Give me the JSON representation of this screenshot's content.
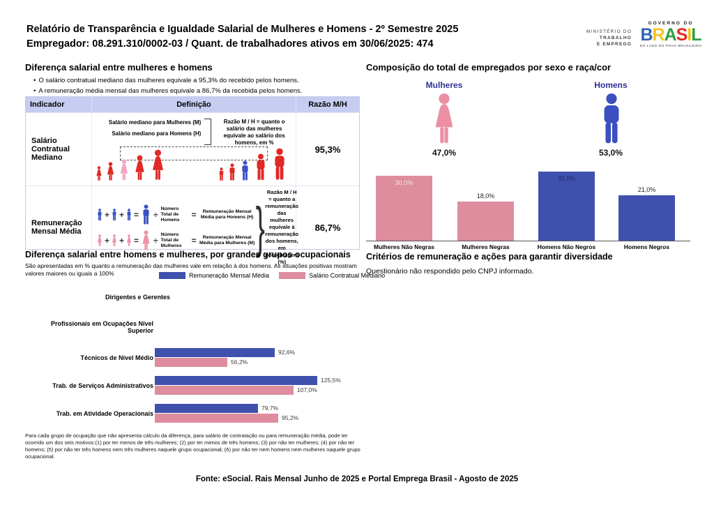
{
  "header": {
    "title1": "Relatório de Transparência e Igualdade Salarial de Mulheres e Homens - 2º Semestre 2025",
    "title2": "Empregador: 08.291.310/0002-03 / Quant. de trabalhadores ativos em 30/06/2025: 474",
    "ministry": [
      "MINISTÉRIO DO",
      "TRABALHO",
      "E EMPREGO"
    ],
    "gov": {
      "top": "GOVERNO DO",
      "name": "BRASIL",
      "bottom": "DO LADO DO POVO BRASILEIRO",
      "letter_colors": [
        "#2f66b2",
        "#f6c31c",
        "#2f9e41",
        "#e52a23",
        "#f6c31c",
        "#2f9e41"
      ]
    }
  },
  "gap": {
    "title": "Diferença salarial entre mulheres e homens",
    "bullets": [
      "O salário contratual mediano das mulheres equivale a 95,3% do recebido pelos homens.",
      "A remuneração média mensal das mulheres equivale a 86,7% da recebida pelos homens."
    ]
  },
  "table": {
    "headers": [
      "Indicador",
      "Definição",
      "Razão M/H"
    ],
    "ops": {
      "plus": "+",
      "equals": "=",
      "divide": "÷"
    },
    "row1": {
      "indicator": "Salário Contratual Mediano",
      "def_line1": "Salário mediano para Mulheres (M)",
      "def_line2": "Salário mediano para Homens (H)",
      "note": "Razão M / H = quanto o salário das mulheres equivale ao salário dos homens, em %",
      "value": "95,3%"
    },
    "row2": {
      "indicator": "Remuneração Mensal Média",
      "men_count": "Número Total de Homens",
      "men_result": "Remuneração Mensal Média para Homens (H)",
      "women_count": "Número Total de Mulheres",
      "women_result": "Remuneração Mensal Média para Mulheres (M)",
      "note": "Razão M / H = quanto a remuneração das mulheres equivale à remuneração dos homens, em porcentagem (%)",
      "value": "86,7%"
    }
  },
  "composition": {
    "title": "Composição do total de empregados por sexo e raça/cor",
    "female_label": "Mulheres",
    "female_pct": "47,0%",
    "male_label": "Homens",
    "male_pct": "53,0%"
  },
  "chart_data": [
    {
      "type": "bar",
      "title": "Composição do total de empregados por sexo e raça/cor",
      "categories": [
        "Mulheres Não Negras",
        "Mulheres Negras",
        "Homens Não Negros",
        "Homens Negros"
      ],
      "values": [
        30.0,
        18.0,
        32.0,
        21.0
      ],
      "value_labels": [
        "30,0%",
        "18,0%",
        "32,0%",
        "21,0%"
      ],
      "colors": [
        "#dd8d9d",
        "#dd8d9d",
        "#3f51ad",
        "#3f51ad"
      ],
      "label_positions": [
        "inside",
        "outside",
        "inside",
        "outside"
      ],
      "inside_label_colors": [
        "#f5e2e6",
        "",
        "#1f2a66",
        ""
      ],
      "xlabel": "",
      "ylabel": "",
      "ylim": [
        0,
        34
      ],
      "grid": false,
      "legend": "none"
    },
    {
      "type": "bar",
      "orientation": "horizontal",
      "title": "Diferença salarial entre homens e mulheres, por grandes grupos ocupacionais",
      "categories": [
        "Dirigentes e Gerentes",
        "Profissionais em Ocupações Nível Superior",
        "Técnicos de Nível Médio",
        "Trab. de Serviços Administrativos",
        "Trab. em Atividade Operacionais"
      ],
      "series": [
        {
          "name": "Remuneração Mensal Média",
          "color": "#3f51ad",
          "values": [
            null,
            null,
            92.6,
            125.5,
            79.7
          ],
          "labels": [
            "",
            "",
            "92,6%",
            "125,5%",
            "79,7%"
          ]
        },
        {
          "name": "Salário Contratual Mediano",
          "color": "#dd8d9d",
          "values": [
            null,
            null,
            56.2,
            107.0,
            95.2
          ],
          "labels": [
            "",
            "",
            "56,2%",
            "107,0%",
            "95,2%"
          ]
        }
      ],
      "xlim": [
        0,
        140
      ],
      "grid": false,
      "legend": "top"
    }
  ],
  "criterios": {
    "title": "Critérios de remuneração e ações para garantir diversidade",
    "body": "Questionário não respondido pelo CNPJ informado."
  },
  "occ": {
    "title": "Diferença salarial entre homens e mulheres, por grandes grupos ocupacionais",
    "subtitle": "São apresentadas em % quanto a remuneração das mulheres vale em relação à dos homens. As situações positivas mostram valores maiores ou iguais a 100%",
    "legend": [
      {
        "label": "Remuneração Mensal Média",
        "color": "#3f51ad"
      },
      {
        "label": "Salário Contratual Mediano",
        "color": "#dd8d9d"
      }
    ]
  },
  "footnote": {
    "text": "Para cada grupo de ocupação que não apresenta cálculo da diferença, para salário de contratação ou para remuneração média, pode ter ocorrido um dos seis motivos:(1) por ter menos de três mulheres; (2) por ter menos de três homens; (3) por não ter mulheres; (4) por não ter homens; (5) por não ter três homens nem três mulheres naquele grupo ocupacional; (6) por não ter nem homens nem mulheres naquele grupo ocupacional."
  },
  "footer": {
    "text": "Fonte: eSocial. Rais Mensal Junho de 2025 e Portal Emprega Brasil - Agosto de 2025"
  },
  "colors": {
    "bar_blue": "#3f51ad",
    "bar_pink": "#dd8d9d",
    "icon_red": "#e02a26",
    "highlight_pink": "#f2a6c6",
    "highlight_blue": "#3c50c8",
    "eq_blue": "#3a53c3",
    "eq_pink": "#ee93a4",
    "fig_pink": "#ec8fa2",
    "fig_blue": "#3b4fc0",
    "navy_text": "#2e3192",
    "table_header_bg": "#c7cdf1"
  }
}
